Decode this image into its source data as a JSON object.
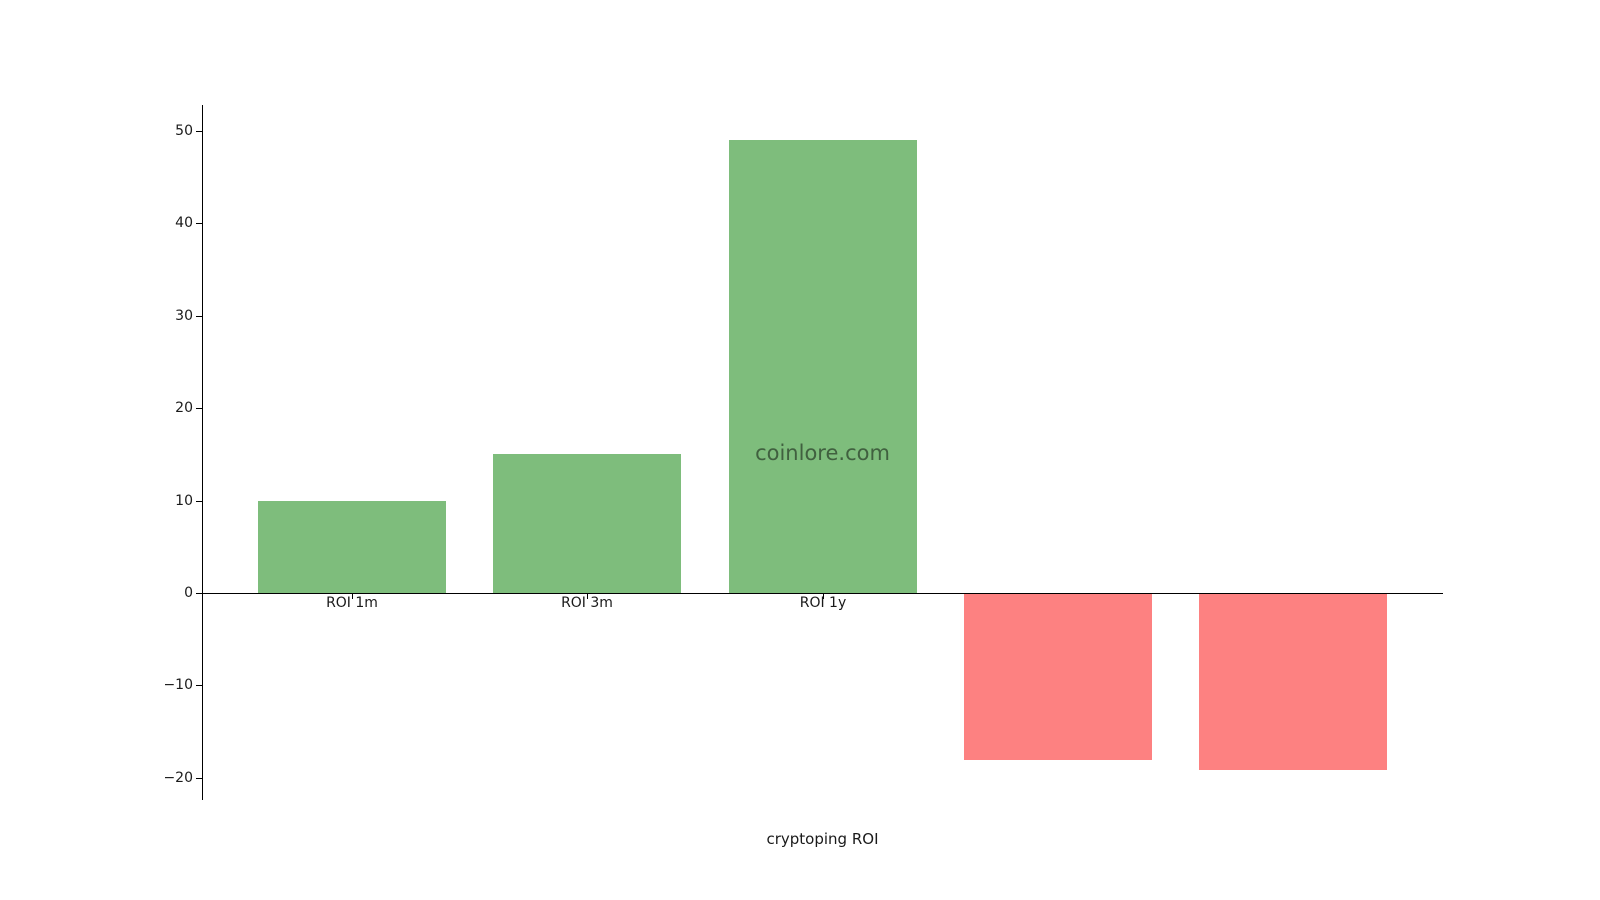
{
  "chart_data": {
    "type": "bar",
    "title": "",
    "categories": [
      "ROI 1m",
      "ROI 3m",
      "ROI 1y",
      "",
      ""
    ],
    "values": [
      10,
      15,
      49,
      -18,
      -19
    ],
    "xlabel": "cryptoping ROI",
    "ylabel": "",
    "yticks": [
      -20,
      -10,
      0,
      10,
      20,
      30,
      40,
      50
    ],
    "ylim": [
      -22.4,
      52.8
    ],
    "grid": false,
    "legend": false,
    "watermark": "coinlore.com",
    "colors": {
      "positive_bar": "#7ebd7c",
      "negative_bar": "#fd8181",
      "axis": "#000000",
      "tick_text": "#1a1a1a",
      "watermark_text": "#40603f",
      "background": "#ffffff"
    }
  }
}
